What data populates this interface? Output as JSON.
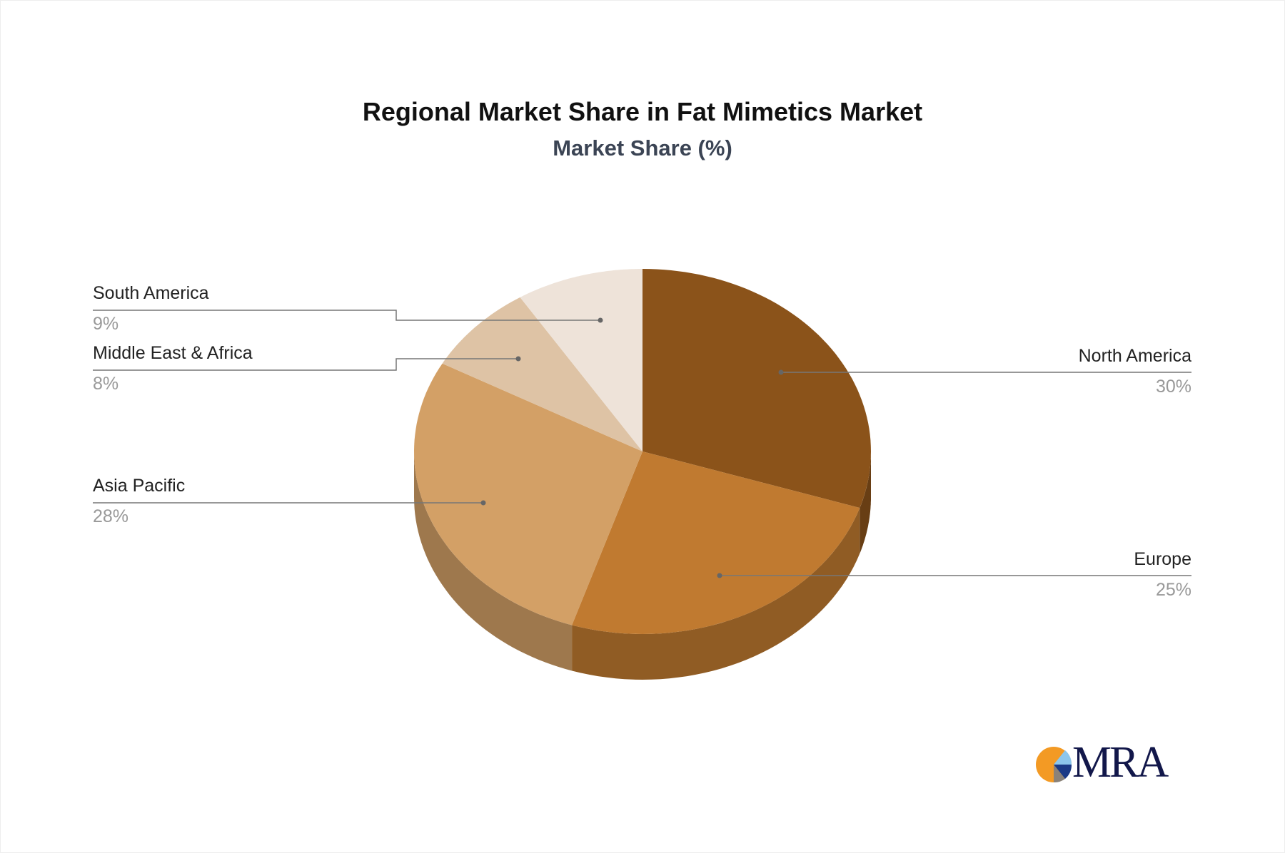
{
  "chart_data": {
    "type": "pie",
    "title": "Regional Market Share in Fat Mimetics Market",
    "subtitle": "Market Share (%)",
    "categories": [
      "North America",
      "Europe",
      "Asia Pacific",
      "Middle East & Africa",
      "South America"
    ],
    "values": [
      30,
      25,
      28,
      8,
      9
    ],
    "value_labels": [
      "30%",
      "25%",
      "28%",
      "8%",
      "9%"
    ],
    "colors": [
      "#8B531A",
      "#C07A30",
      "#D3A066",
      "#DEC3A5",
      "#EEE3D9"
    ],
    "style": "3d",
    "legend": "none"
  },
  "logo": {
    "text": "MRA"
  }
}
